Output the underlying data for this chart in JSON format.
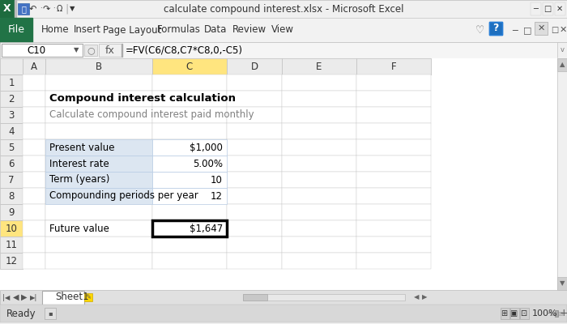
{
  "title_bar_text": "calculate compound interest.xlsx - Microsoft Excel",
  "formula_bar_ref": "C10",
  "formula_bar_formula": "=FV(C6/C8,C7*C8,0,-C5)",
  "col_header_highlight": "C",
  "row_header_highlight": "10",
  "menu_items": [
    "File",
    "Home",
    "Insert",
    "Page Layout",
    "Formulas",
    "Data",
    "Review",
    "View"
  ],
  "title1": "Compound interest calculation",
  "title2": "Calculate compound interest paid monthly",
  "table_rows": [
    [
      "Present value",
      "$1,000"
    ],
    [
      "Interest rate",
      "5.00%"
    ],
    [
      "Term (years)",
      "10"
    ],
    [
      "Compounding periods per year",
      "12"
    ]
  ],
  "result_label": "Future value",
  "result_value": "$1,647",
  "col_headers": [
    "A",
    "B",
    "C",
    "D",
    "E",
    "F"
  ],
  "row_numbers": [
    "1",
    "2",
    "3",
    "4",
    "5",
    "6",
    "7",
    "8",
    "9",
    "10",
    "11",
    "12"
  ],
  "bg_color": "#F0F0F0",
  "title_bar_bg": "#F0F0F0",
  "file_btn_color": "#217346",
  "col_hl_color": "#FFE57F",
  "row_hl_color": "#FFE57F",
  "table_label_bg": "#DCE6F1",
  "table_value_bg": "#FFFFFF",
  "selected_cell_border": "#000000",
  "title1_color": "#000000",
  "title2_color": "#808080",
  "grid_color": "#C8C8C8",
  "header_bg": "#EBEBEB",
  "sheet_bg": "#FFFFFF",
  "ribbon_bg": "#F2F2F2",
  "formula_bar_bg": "#FFFFFF",
  "status_bar_bg": "#D8D8D8"
}
